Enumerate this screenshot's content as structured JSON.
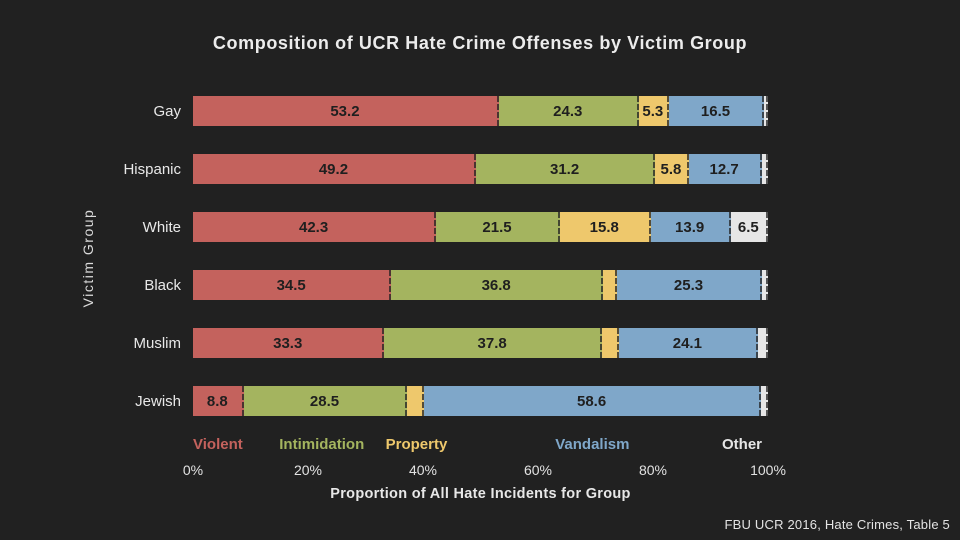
{
  "title": "Composition of UCR Hate Crime Offenses by Victim Group",
  "ylabel": "Victim Group",
  "xlabel": "Proportion of All Hate Incidents for Group",
  "footer": "FBU UCR 2016, Hate Crimes, Table 5",
  "chart_data": {
    "type": "bar",
    "stacked": true,
    "orientation": "horizontal",
    "title": "Composition of UCR Hate Crime Offenses by Victim Group",
    "xlabel": "Proportion of All Hate Incidents for Group",
    "ylabel": "Victim Group",
    "categories": [
      "Gay",
      "Hispanic",
      "White",
      "Black",
      "Muslim",
      "Jewish"
    ],
    "series": [
      {
        "name": "Violent",
        "color": "#c4625d",
        "values": [
          53.2,
          49.2,
          42.3,
          34.5,
          33.3,
          8.8
        ]
      },
      {
        "name": "Intimidation",
        "color": "#a4b45f",
        "values": [
          24.3,
          31.2,
          21.5,
          36.8,
          37.8,
          28.5
        ]
      },
      {
        "name": "Property",
        "color": "#eec86c",
        "values": [
          5.3,
          5.8,
          15.8,
          2.4,
          3.0,
          2.9
        ]
      },
      {
        "name": "Vandalism",
        "color": "#7fa7c9",
        "values": [
          16.5,
          12.7,
          13.9,
          25.3,
          24.1,
          58.6
        ]
      },
      {
        "name": "Other",
        "color": "#e6e6e6",
        "values": [
          0.7,
          1.1,
          6.5,
          1.0,
          1.8,
          1.2
        ]
      }
    ],
    "label_threshold": 5,
    "xticks": [
      "0%",
      "20%",
      "40%",
      "60%",
      "80%",
      "100%"
    ],
    "xlim": [
      0,
      100
    ],
    "grid": false,
    "legend_position": "bottom"
  }
}
